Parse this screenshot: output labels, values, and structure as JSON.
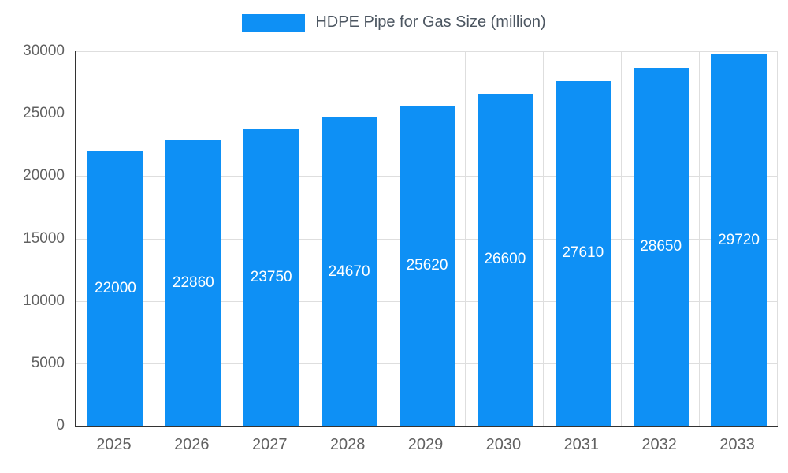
{
  "chart_data": {
    "type": "bar",
    "title": "HDPE Pipe for Gas Size (million)",
    "categories": [
      "2025",
      "2026",
      "2027",
      "2028",
      "2029",
      "2030",
      "2031",
      "2032",
      "2033"
    ],
    "values": [
      22000,
      22860,
      23750,
      24670,
      25620,
      26600,
      27610,
      28650,
      29720
    ],
    "xlabel": "",
    "ylabel": "",
    "ylim": [
      0,
      30000
    ],
    "ytick_step": 5000,
    "grid": true,
    "legend_position": "top-center",
    "bar_color": "#0e90f5",
    "bar_label_color": "#ffffff",
    "axis_text_color": "#616161",
    "grid_color": "#dedede"
  },
  "legend": {
    "label": "HDPE Pipe for Gas Size (million)"
  }
}
